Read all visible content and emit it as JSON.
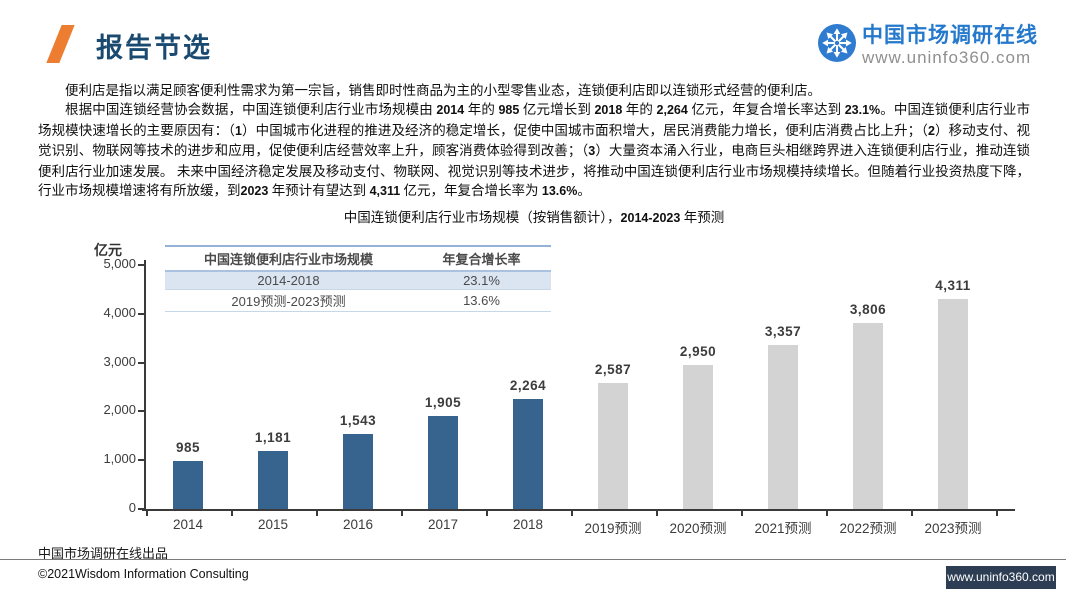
{
  "header": {
    "title": "报告节选",
    "logo": {
      "name": "中国市场调研在线",
      "url": "www.uninfo360.com"
    }
  },
  "body": {
    "paragraphs": [
      {
        "segments": [
          {
            "t": "便利店是指以满足顾客便利性需求为第一宗旨，销售即时性商品为主的小型零售业态，连锁便利店即以连锁形式经营的便利店。"
          }
        ]
      },
      {
        "segments": [
          {
            "t": "根据中国连锁经营协会数据，中国连锁便利店行业市场规模由 "
          },
          {
            "t": "2014",
            "b": true
          },
          {
            "t": " 年的 "
          },
          {
            "t": "985",
            "b": true
          },
          {
            "t": " 亿元增长到 "
          },
          {
            "t": "2018",
            "b": true
          },
          {
            "t": " 年的 "
          },
          {
            "t": "2,264",
            "b": true
          },
          {
            "t": " 亿元，年复合增长率达到 "
          },
          {
            "t": "23.1%",
            "b": true
          },
          {
            "t": "。中国连锁便利店行业市场规模快速增长的主要原因有：（"
          },
          {
            "t": "1",
            "b": true
          },
          {
            "t": "）中国城市化进程的推进及经济的稳定增长，促使中国城市面积增大，居民消费能力增长，便利店消费占比上升；（"
          },
          {
            "t": "2",
            "b": true
          },
          {
            "t": "）移动支付、视觉识别、物联网等技术的进步和应用，促使便利店经营效率上升，顾客消费体验得到改善；（"
          },
          {
            "t": "3",
            "b": true
          },
          {
            "t": "）大量资本涌入行业，电商巨头相继跨界进入连锁便利店行业，推动连锁便利店行业加速发展。 未来中国经济稳定发展及移动支付、物联网、视觉识别等技术进步，将推动中国连锁便利店行业市场规模持续增长。但随着行业投资热度下降，行业市场规模增速将有所放缓，到"
          },
          {
            "t": "2023",
            "b": true
          },
          {
            "t": " 年预计有望达到 "
          },
          {
            "t": "4,311",
            "b": true
          },
          {
            "t": " 亿元，年复合增长率为 "
          },
          {
            "t": "13.6%",
            "b": true
          },
          {
            "t": "。"
          }
        ]
      }
    ]
  },
  "caption": {
    "segments": [
      {
        "t": "中国连锁便利店行业市场规模（按销售额计），"
      },
      {
        "t": "2014-2023",
        "b": true
      },
      {
        "t": " 年预测"
      }
    ]
  },
  "chart_data": {
    "type": "bar",
    "title": "中国连锁便利店行业市场规模（按销售额计），2014-2023 年预测",
    "unit_label": "亿元",
    "categories": [
      "2014",
      "2015",
      "2016",
      "2017",
      "2018",
      "2019预测",
      "2020预测",
      "2021预测",
      "2022预测",
      "2023预测"
    ],
    "values": [
      985,
      1181,
      1543,
      1905,
      2264,
      2587,
      2950,
      3357,
      3806,
      4311
    ],
    "value_labels": [
      "985",
      "1,181",
      "1,543",
      "1,905",
      "2,264",
      "2,587",
      "2,950",
      "3,357",
      "3,806",
      "4,311"
    ],
    "actual_count": 5,
    "bar_colors": {
      "actual": "#36648f",
      "forecast": "#d3d3d3"
    },
    "ylim": [
      0,
      5000
    ],
    "ytick_labels": [
      "0",
      "1,000",
      "2,000",
      "3,000",
      "4,000",
      "5,000"
    ],
    "grid": false,
    "legend_table": {
      "headers": [
        "中国连锁便利店行业市场规模",
        "年复合增长率"
      ],
      "rows": [
        [
          "2014-2018",
          "23.1%"
        ],
        [
          "2019预测-2023预测",
          "13.6%"
        ]
      ]
    }
  },
  "footer": {
    "producer": "中国市场调研在线出品",
    "copyright": "©2021Wisdom Information Consulting",
    "site_badge": "www.uninfo360.com"
  },
  "colors": {
    "accent_orange": "#ed7d31",
    "title_navy": "#1b4a71",
    "logo_blue": "#2579cc",
    "badge_navy": "#2d3e54"
  }
}
